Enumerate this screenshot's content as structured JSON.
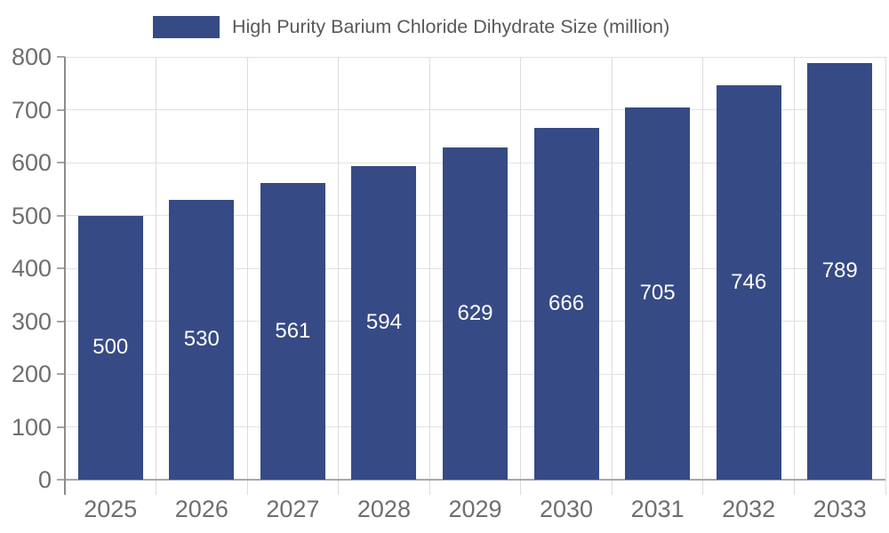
{
  "legend": {
    "label": "High Purity Barium Chloride Dihydrate Size (million)",
    "swatch_color": "#364A85"
  },
  "chart_data": {
    "type": "bar",
    "title": "High Purity Barium Chloride Dihydrate Size (million)",
    "categories": [
      "2025",
      "2026",
      "2027",
      "2028",
      "2029",
      "2030",
      "2031",
      "2032",
      "2033"
    ],
    "series": [
      {
        "name": "High Purity Barium Chloride Dihydrate Size (million)",
        "values": [
          500,
          530,
          561,
          594,
          629,
          666,
          705,
          746,
          789
        ]
      }
    ],
    "xlabel": "",
    "ylabel": "",
    "ylim": [
      0,
      800
    ],
    "yticks": [
      0,
      100,
      200,
      300,
      400,
      500,
      600,
      700,
      800
    ],
    "grid": true,
    "legend_position": "top",
    "bar_color": "#364A85",
    "value_label_color": "#ffffff",
    "axis_text_color": "#6e6e6e",
    "grid_color": "#e2e2e2"
  }
}
